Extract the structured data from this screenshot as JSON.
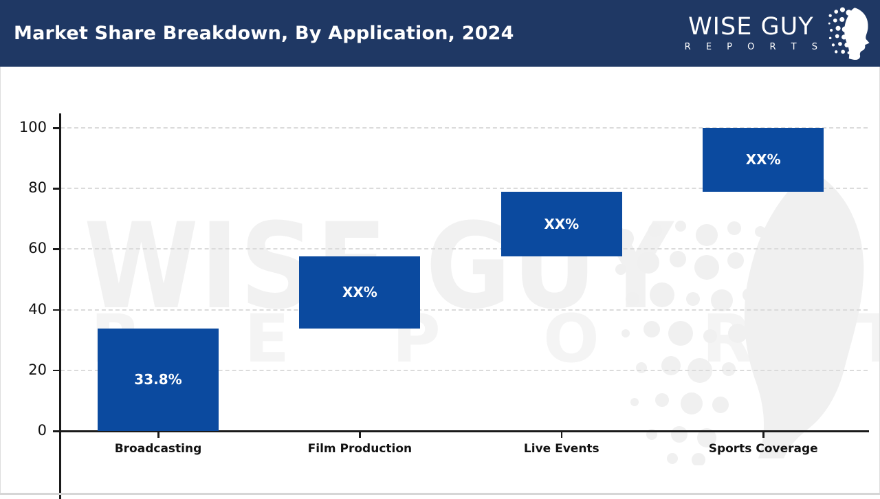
{
  "header": {
    "title": "Market Share Breakdown, By Application, 2024",
    "bg_color": "#1f3864",
    "logo": {
      "line1": "WISE GUY",
      "line2": "R E P O R T S"
    }
  },
  "watermark": {
    "line1": "WISE GUY",
    "line2": "R E P O R T S"
  },
  "chart_data": {
    "type": "bar",
    "subtype": "waterfall",
    "title": "Market Share Breakdown, By Application, 2024",
    "categories": [
      "Broadcasting",
      "Film Production",
      "Live Events",
      "Sports Coverage"
    ],
    "segments": [
      {
        "category": "Broadcasting",
        "start": 0,
        "end": 33.8,
        "label": "33.8%"
      },
      {
        "category": "Film Production",
        "start": 33.8,
        "end": 57.6,
        "label": "XX%"
      },
      {
        "category": "Live Events",
        "start": 57.6,
        "end": 79.0,
        "label": "XX%"
      },
      {
        "category": "Sports Coverage",
        "start": 79.0,
        "end": 100.0,
        "label": "XX%"
      }
    ],
    "ylim": [
      0,
      100
    ],
    "yticks": [
      0,
      20,
      40,
      60,
      80,
      100
    ],
    "xlabel": "",
    "ylabel": "",
    "bar_color": "#0b4a9f",
    "bar_label_color": "#ffffff",
    "grid": "horizontal-dashed",
    "legend_position": "none"
  }
}
